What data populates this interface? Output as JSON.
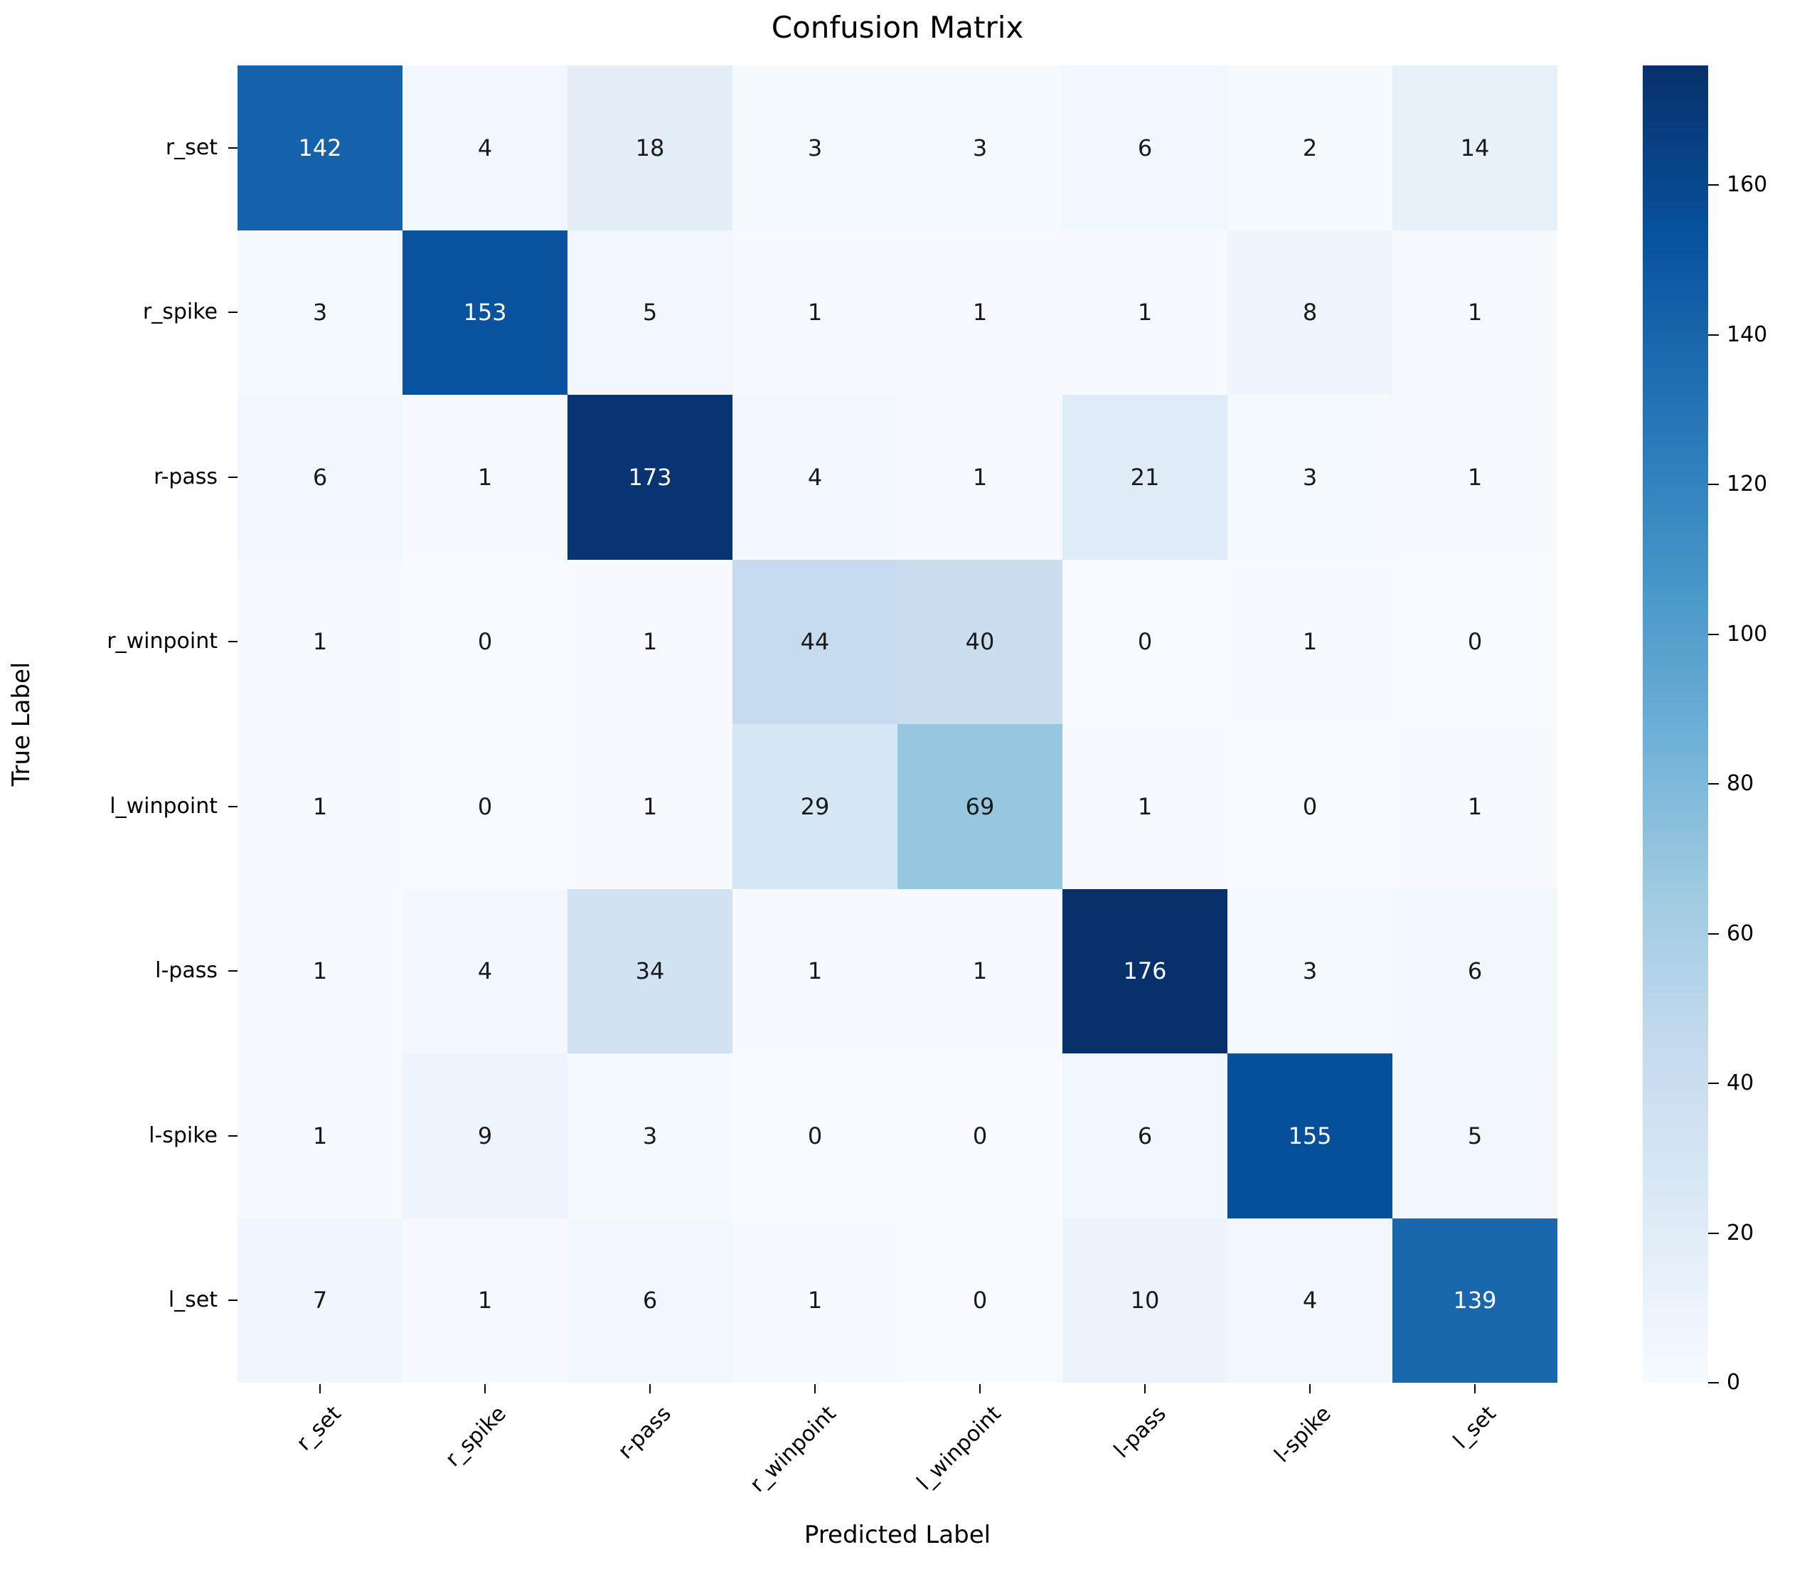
{
  "title": "Confusion Matrix",
  "axes": {
    "xlabel": "Predicted Label",
    "ylabel": "True Label"
  },
  "chart_data": {
    "type": "heatmap",
    "title": "Confusion Matrix",
    "xlabel": "Predicted Label",
    "ylabel": "True Label",
    "x_categories": [
      "r_set",
      "r_spike",
      "r-pass",
      "r_winpoint",
      "l_winpoint",
      "l-pass",
      "l-spike",
      "l_set"
    ],
    "y_categories": [
      "r_set",
      "r_spike",
      "r-pass",
      "r_winpoint",
      "l_winpoint",
      "l-pass",
      "l-spike",
      "l_set"
    ],
    "matrix": [
      [
        142,
        4,
        18,
        3,
        3,
        6,
        2,
        14
      ],
      [
        3,
        153,
        5,
        1,
        1,
        1,
        8,
        1
      ],
      [
        6,
        1,
        173,
        4,
        1,
        21,
        3,
        1
      ],
      [
        1,
        0,
        1,
        44,
        40,
        0,
        1,
        0
      ],
      [
        1,
        0,
        1,
        29,
        69,
        1,
        0,
        1
      ],
      [
        1,
        4,
        34,
        1,
        1,
        176,
        3,
        6
      ],
      [
        1,
        9,
        3,
        0,
        0,
        6,
        155,
        5
      ],
      [
        7,
        1,
        6,
        1,
        0,
        10,
        4,
        139
      ]
    ],
    "vmin": 0,
    "vmax": 176,
    "colormap": "Blues",
    "colorbar_ticks": [
      0,
      20,
      40,
      60,
      80,
      100,
      120,
      140,
      160
    ],
    "legend_position": "right-colorbar",
    "grid": false
  },
  "colors": {
    "background": "#ffffff",
    "text": "#000000",
    "annotation_dark": "#1a1a1a",
    "annotation_light": "#ffffff",
    "blues_colormap_anchors": [
      "#f7fbff",
      "#deebf7",
      "#c6dbef",
      "#9ecae1",
      "#6baed6",
      "#4292c6",
      "#2171b5",
      "#08519c",
      "#08306b"
    ]
  }
}
